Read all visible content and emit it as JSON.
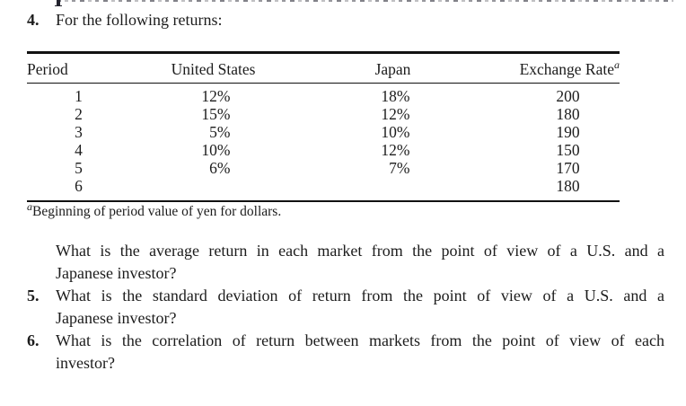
{
  "problem4": {
    "number": "4.",
    "intro": "For the following returns:",
    "question_line1": "What is the average return in each market from the point of view of a U.S. and a",
    "question_line2": "Japanese investor?"
  },
  "table": {
    "headers": [
      "Period",
      "United States",
      "Japan",
      "Exchange Rate"
    ],
    "exchange_rate_superscript": "a",
    "rows": [
      [
        "1",
        "12%",
        "18%",
        "200"
      ],
      [
        "2",
        "15%",
        "12%",
        "180"
      ],
      [
        "3",
        "5%",
        "10%",
        "190"
      ],
      [
        "4",
        "10%",
        "12%",
        "150"
      ],
      [
        "5",
        "6%",
        "7%",
        "170"
      ],
      [
        "6",
        "",
        "",
        "180"
      ]
    ],
    "footnote_marker": "a",
    "footnote_text": "Beginning of period value of yen for dollars."
  },
  "problem5": {
    "number": "5.",
    "question_line1": "What is the standard deviation of return from the point of view of a U.S. and a",
    "question_line2": "Japanese investor?"
  },
  "problem6": {
    "number": "6.",
    "question_line1": "What is the correlation of return between markets from the point of view of each",
    "question_line2": "investor?"
  },
  "colors": {
    "text": "#1c1c1c",
    "rule": "#111111",
    "background": "#ffffff"
  }
}
